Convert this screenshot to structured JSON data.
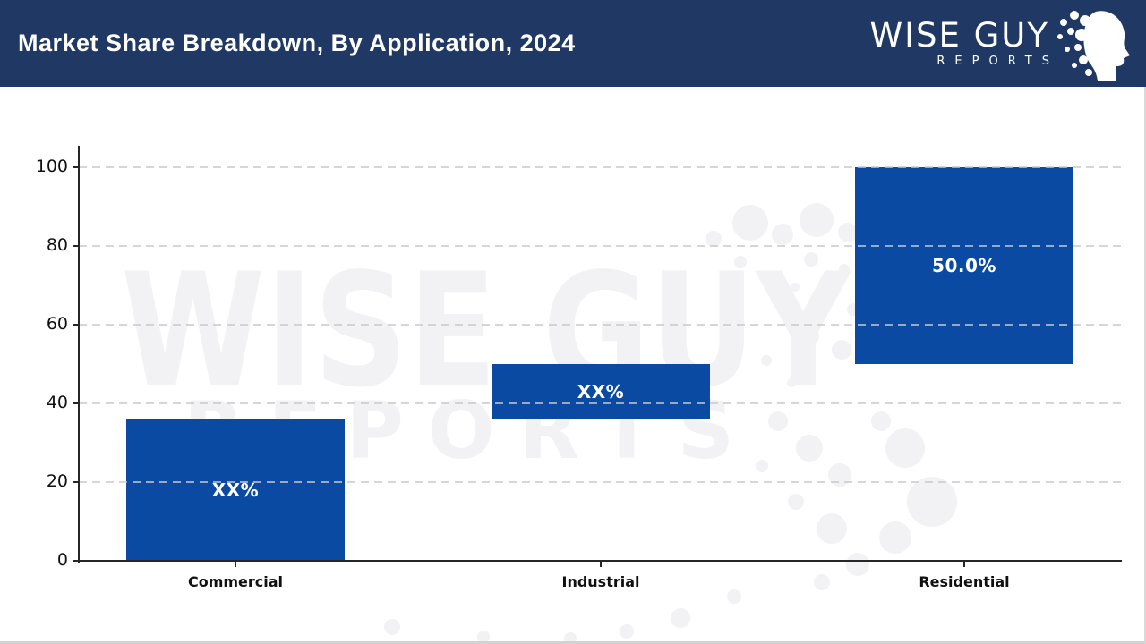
{
  "header": {
    "title": "Market Share Breakdown, By Application, 2024",
    "bg_color": "#1f3864",
    "logo": {
      "line1": "WISE GUY",
      "line2": "REPORTS"
    }
  },
  "watermark": {
    "line1": "WISE GUY",
    "line2": "REPORTS"
  },
  "chart_data": {
    "type": "bar",
    "subtype": "waterfall",
    "title": "Market Share Breakdown, By Application, 2024",
    "xlabel": "",
    "ylabel": "",
    "categories": [
      "Commercial",
      "Industrial",
      "Residential"
    ],
    "series": [
      {
        "name": "Market Share %",
        "segments": [
          {
            "category": "Commercial",
            "start": 0,
            "end": 36,
            "value": 36,
            "label": "XX%"
          },
          {
            "category": "Industrial",
            "start": 36,
            "end": 50,
            "value": 14,
            "label": "XX%"
          },
          {
            "category": "Residential",
            "start": 50,
            "end": 100,
            "value": 50,
            "label": "50.0%"
          }
        ]
      }
    ],
    "y_ticks": [
      0,
      20,
      40,
      60,
      80,
      100
    ],
    "ylim": [
      0,
      100
    ],
    "grid": "horizontal dashed, drawn above bars",
    "legend": "none",
    "bar_color": "#0b4aa2",
    "bar_label_color": "#ffffff",
    "axis_color": "#262626",
    "gridline_color": "#c9c9c9"
  }
}
